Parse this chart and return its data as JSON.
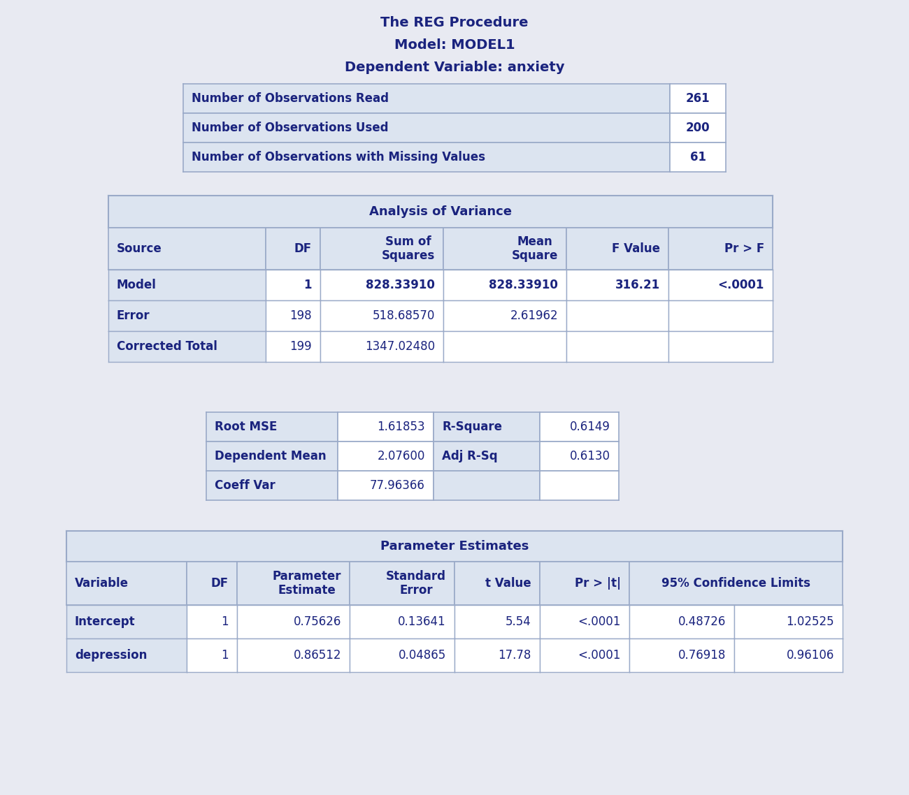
{
  "bg_color": "#e8eaf2",
  "title_lines": [
    "The REG Procedure",
    "Model: MODEL1",
    "Dependent Variable: anxiety"
  ],
  "title_color": "#1a237e",
  "title_fontsize": 14,
  "obs_table": {
    "rows": [
      [
        "Number of Observations Read",
        "261"
      ],
      [
        "Number of Observations Used",
        "200"
      ],
      [
        "Number of Observations with Missing Values",
        "61"
      ]
    ]
  },
  "anova_table": {
    "title": "Analysis of Variance",
    "col_headers": [
      "Source",
      "DF",
      "Sum of\nSquares",
      "Mean\nSquare",
      "F Value",
      "Pr > F"
    ],
    "col_align": [
      "left",
      "right",
      "right",
      "right",
      "right",
      "right"
    ],
    "rows": [
      [
        "Model",
        "1",
        "828.33910",
        "828.33910",
        "316.21",
        "<.0001"
      ],
      [
        "Error",
        "198",
        "518.68570",
        "2.61962",
        "",
        ""
      ],
      [
        "Corrected Total",
        "199",
        "1347.02480",
        "",
        "",
        ""
      ]
    ],
    "row_bold": [
      true,
      false,
      false
    ]
  },
  "fit_table": {
    "rows": [
      [
        "Root MSE",
        "1.61853",
        "R-Square",
        "0.6149"
      ],
      [
        "Dependent Mean",
        "2.07600",
        "Adj R-Sq",
        "0.6130"
      ],
      [
        "Coeff Var",
        "77.96366",
        "",
        ""
      ]
    ]
  },
  "param_table": {
    "title": "Parameter Estimates",
    "col_headers": [
      "Variable",
      "DF",
      "Parameter\nEstimate",
      "Standard\nError",
      "t Value",
      "Pr > |t|",
      "95% Confidence Limits"
    ],
    "col_align": [
      "left",
      "right",
      "right",
      "right",
      "right",
      "right",
      "center"
    ],
    "rows": [
      [
        "Intercept",
        "1",
        "0.75626",
        "0.13641",
        "5.54",
        "<.0001",
        "0.48726",
        "1.02525"
      ],
      [
        "depression",
        "1",
        "0.86512",
        "0.04865",
        "17.78",
        "<.0001",
        "0.76918",
        "0.96106"
      ]
    ]
  },
  "text_color": "#1a237e",
  "header_bg": "#dce4f0",
  "cell_bg": "#ffffff",
  "border_color": "#9aaac8"
}
